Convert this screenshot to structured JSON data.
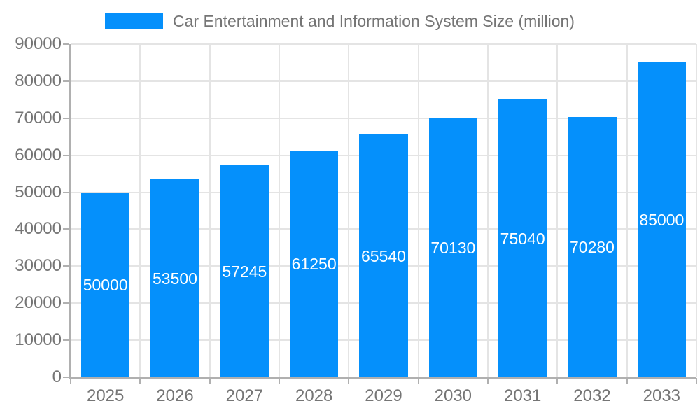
{
  "legend": {
    "label": "Car Entertainment and Information System Size (million)"
  },
  "chart_data": {
    "type": "bar",
    "title": "Car Entertainment and Information System Size (million)",
    "categories": [
      "2025",
      "2026",
      "2027",
      "2028",
      "2029",
      "2030",
      "2031",
      "2032",
      "2033"
    ],
    "values": [
      50000,
      53500,
      57245,
      61250,
      65540,
      70130,
      75040,
      70280,
      85000
    ],
    "xlabel": "",
    "ylabel": "",
    "ylim": [
      0,
      90000
    ],
    "ytick_step": 10000,
    "grid": true,
    "legend_position": "top-left",
    "bar_labels_inside": true,
    "colors": {
      "bar": "#0590FB",
      "grid": "#e4e4e4",
      "axis": "#b0b0b0",
      "text": "#757575",
      "bar_label": "#ffffff",
      "background": "#ffffff"
    }
  }
}
